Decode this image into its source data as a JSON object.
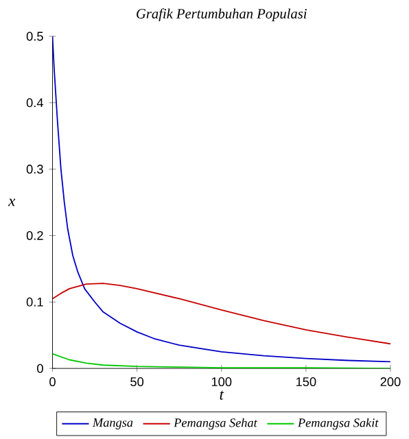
{
  "chart_data": {
    "type": "line",
    "title": "Grafik Pertumbuhan Populasi",
    "xlabel": "t",
    "ylabel": "x",
    "xlim": [
      0,
      200
    ],
    "ylim": [
      0,
      0.5
    ],
    "xticks": [
      0,
      50,
      100,
      150,
      200
    ],
    "yticks": [
      0,
      0.1,
      0.2,
      0.3,
      0.4,
      0.5
    ],
    "grid": false,
    "legend": "bottom",
    "marker": "none",
    "line_style": "solid",
    "series": [
      {
        "name": "Mangsa",
        "color": "#0000c8",
        "x": [
          0,
          1,
          2,
          3,
          5,
          7,
          9,
          12,
          15,
          19,
          25,
          30,
          40,
          50,
          60,
          75,
          100,
          125,
          150,
          175,
          200
        ],
        "values": [
          0.5,
          0.45,
          0.41,
          0.37,
          0.3,
          0.25,
          0.21,
          0.17,
          0.145,
          0.12,
          0.1,
          0.085,
          0.068,
          0.055,
          0.045,
          0.035,
          0.025,
          0.019,
          0.015,
          0.012,
          0.01
        ]
      },
      {
        "name": "Pemangsa Sehat",
        "color": "#c80000",
        "x": [
          0,
          5,
          10,
          20,
          30,
          40,
          50,
          75,
          100,
          125,
          150,
          175,
          200
        ],
        "values": [
          0.105,
          0.113,
          0.12,
          0.127,
          0.128,
          0.125,
          0.12,
          0.105,
          0.088,
          0.072,
          0.058,
          0.047,
          0.037
        ]
      },
      {
        "name": "Pemangsa Sakit",
        "color": "#00c800",
        "x": [
          0,
          10,
          20,
          30,
          50,
          75,
          100,
          150,
          200
        ],
        "values": [
          0.022,
          0.013,
          0.008,
          0.005,
          0.003,
          0.002,
          0.001,
          0.001,
          0
        ]
      }
    ]
  }
}
